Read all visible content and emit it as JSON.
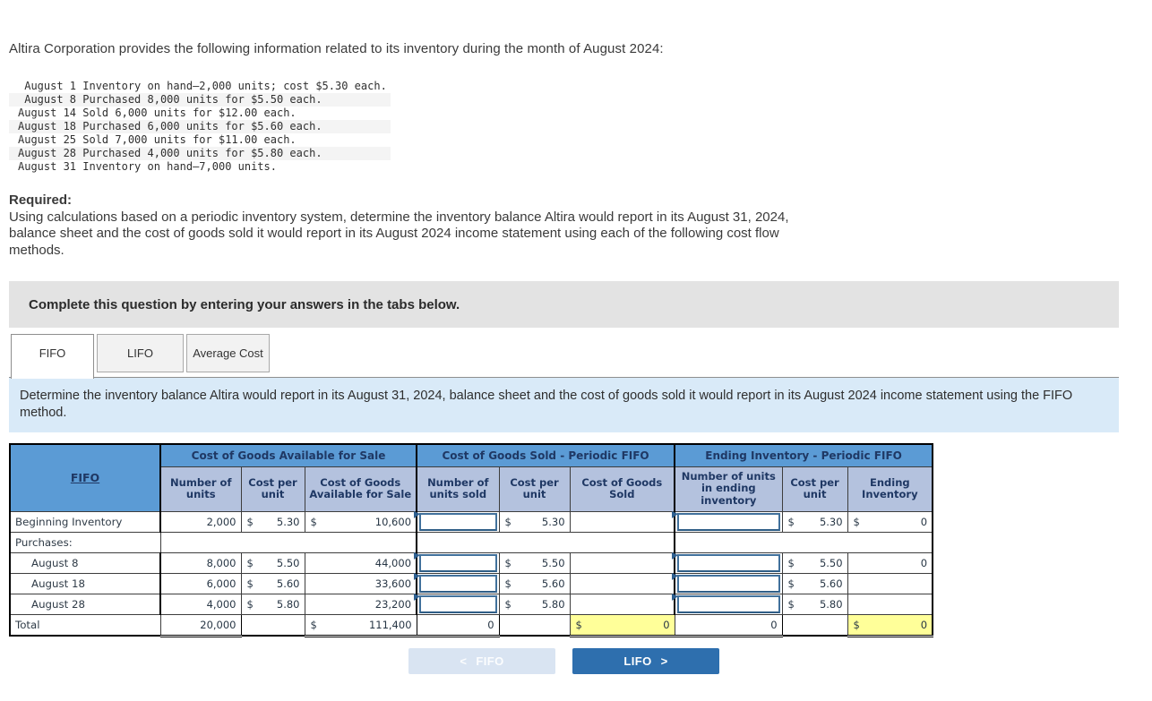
{
  "intro": "Altira Corporation provides the following information related to its inventory during the month of August 2024:",
  "transactions": {
    "lines": [
      {
        "text": " August 1 Inventory on hand–2,000 units; cost $5.30 each.",
        "shaded": false
      },
      {
        "text": " August 8 Purchased 8,000 units for $5.50 each.",
        "shaded": true
      },
      {
        "text": "August 14 Sold 6,000 units for $12.00 each.",
        "shaded": false
      },
      {
        "text": "August 18 Purchased 6,000 units for $5.60 each.",
        "shaded": true
      },
      {
        "text": "August 25 Sold 7,000 units for $11.00 each.",
        "shaded": false
      },
      {
        "text": "August 28 Purchased 4,000 units for $5.80 each.",
        "shaded": true
      },
      {
        "text": "August 31 Inventory on hand–7,000 units.",
        "shaded": false
      }
    ]
  },
  "required": {
    "label": "Required:",
    "text": "Using calculations based on a periodic inventory system, determine the inventory balance Altira would report in its August 31, 2024, balance sheet and the cost of goods sold it would report in its August 2024 income statement using each of the following cost flow methods."
  },
  "banner": "Complete this question by entering your answers in the tabs below.",
  "tabs": [
    {
      "label": "FIFO",
      "active": true
    },
    {
      "label": "LIFO",
      "active": false
    },
    {
      "label": "Average Cost",
      "active": false
    }
  ],
  "note": "Determine the inventory balance Altira would report in its August 31, 2024, balance sheet and the cost of goods sold it would report in its August 2024 income statement using the FIFO method.",
  "table": {
    "corner_label": "FIFO",
    "groups": [
      "Cost of Goods Available for Sale",
      "Cost of Goods Sold - Periodic FIFO",
      "Ending Inventory - Periodic FIFO"
    ],
    "columns": [
      "Number of units",
      "Cost per unit",
      "Cost of Goods Available for Sale",
      "Number of units sold",
      "Cost per unit",
      "Cost of Goods Sold",
      "Number of units in ending inventory",
      "Cost per unit",
      "Ending Inventory"
    ],
    "rows": [
      {
        "label": "Beginning Inventory",
        "indent": false,
        "total": false,
        "cells": [
          {
            "v": "2,000"
          },
          {
            "d": "$",
            "v": "5.30"
          },
          {
            "d": "$",
            "v": "10,600"
          },
          {
            "input": true
          },
          {
            "d": "$",
            "v": "5.30"
          },
          {
            "blank": true
          },
          {
            "input": true
          },
          {
            "d": "$",
            "v": "5.30"
          },
          {
            "d": "$",
            "v": "0"
          }
        ]
      },
      {
        "label": "Purchases:",
        "indent": false,
        "total": false,
        "merged": true,
        "cells": [
          {
            "span": 3
          },
          {
            "span": 3
          },
          {
            "span": 3
          }
        ]
      },
      {
        "label": "August 8",
        "indent": true,
        "total": false,
        "cells": [
          {
            "v": "8,000"
          },
          {
            "d": "$",
            "v": "5.50"
          },
          {
            "v": "44,000"
          },
          {
            "input": true
          },
          {
            "d": "$",
            "v": "5.50"
          },
          {
            "blank": true
          },
          {
            "input": true
          },
          {
            "d": "$",
            "v": "5.50"
          },
          {
            "v": "0"
          }
        ]
      },
      {
        "label": "August 18",
        "indent": true,
        "total": false,
        "cells": [
          {
            "v": "6,000"
          },
          {
            "d": "$",
            "v": "5.60"
          },
          {
            "v": "33,600"
          },
          {
            "input": true
          },
          {
            "d": "$",
            "v": "5.60"
          },
          {
            "blank": true
          },
          {
            "input": true
          },
          {
            "d": "$",
            "v": "5.60"
          },
          {
            "blank": true
          }
        ]
      },
      {
        "label": "August 28",
        "indent": true,
        "total": false,
        "cells": [
          {
            "v": "4,000"
          },
          {
            "d": "$",
            "v": "5.80"
          },
          {
            "v": "23,200"
          },
          {
            "input": true
          },
          {
            "d": "$",
            "v": "5.80"
          },
          {
            "blank": true
          },
          {
            "input": true
          },
          {
            "d": "$",
            "v": "5.80"
          },
          {
            "blank": true
          }
        ]
      },
      {
        "label": "Total",
        "indent": false,
        "total": true,
        "cells": [
          {
            "v": "20,000",
            "box": true
          },
          {
            "blank": true
          },
          {
            "d": "$",
            "v": "111,400",
            "box": true
          },
          {
            "v": "0",
            "box": true
          },
          {
            "blank": true
          },
          {
            "d": "$",
            "v": "0",
            "yellow": true
          },
          {
            "v": "0",
            "box": true
          },
          {
            "blank": true
          },
          {
            "d": "$",
            "v": "0",
            "yellow": true
          }
        ]
      }
    ]
  },
  "nav": {
    "prev_label": "FIFO",
    "prev_chevron": "<",
    "next_label": "LIFO",
    "next_chevron": ">"
  },
  "colors": {
    "group_header_blue": "#5b9bd5",
    "sub_header_blue": "#b4c2de",
    "header_text_navy": "#1f3864",
    "input_border_blue": "#41719c",
    "answer_yellow": "#ffff99",
    "note_bg_blue": "#d9eaf8",
    "banner_gray": "#e3e3e3",
    "next_button_blue": "#2e6fae",
    "prev_button_blue": "#d9e4f2"
  }
}
